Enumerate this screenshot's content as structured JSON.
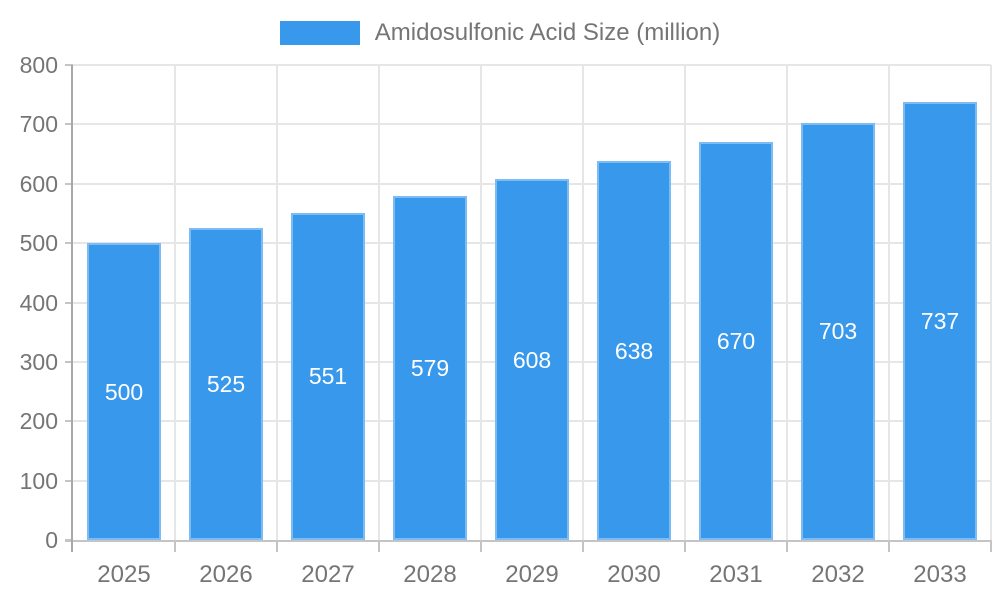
{
  "chart_data": {
    "type": "bar",
    "title": "",
    "legend": "Amidosulfonic Acid Size (million)",
    "legend_position": "top-center",
    "categories": [
      "2025",
      "2026",
      "2027",
      "2028",
      "2029",
      "2030",
      "2031",
      "2032",
      "2033"
    ],
    "values": [
      500,
      525,
      551,
      579,
      608,
      638,
      670,
      703,
      737
    ],
    "series": [
      {
        "name": "Amidosulfonic Acid Size (million)",
        "values": [
          500,
          525,
          551,
          579,
          608,
          638,
          670,
          703,
          737
        ]
      }
    ],
    "xlabel": "",
    "ylabel": "",
    "ylim": [
      0,
      800
    ],
    "ytick_step": 100,
    "yticks": [
      0,
      100,
      200,
      300,
      400,
      500,
      600,
      700,
      800
    ],
    "grid": true,
    "bar_labels_visible": true,
    "bar_label_position": "middle-inside"
  },
  "colors": {
    "bar_fill": "#3898EC",
    "bar_border": "rgba(255,255,255,0.35)",
    "grid_line": "#E6E6E6",
    "axis_line_y": "#A8A8A8",
    "baseline": "#C4C4C4",
    "tick": "#C4C4C4",
    "axis_text": "#757575",
    "legend_text": "#757575",
    "bar_label_text": "#FFFFFF",
    "background": "#FFFFFF"
  }
}
